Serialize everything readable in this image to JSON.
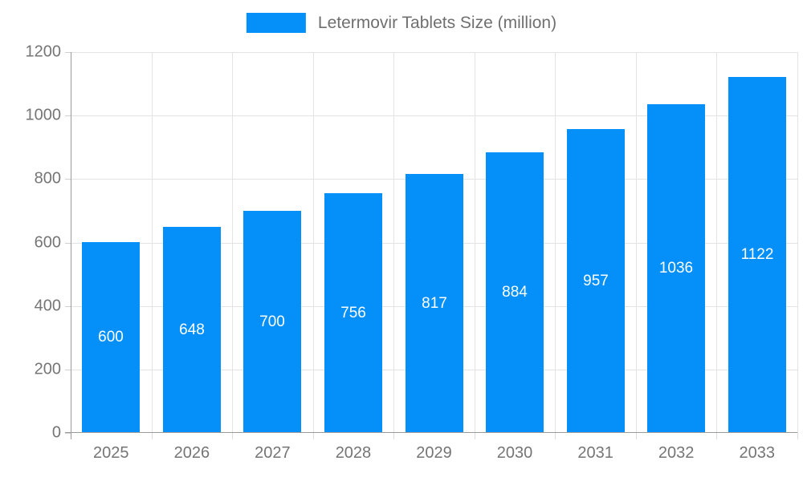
{
  "chart_data": {
    "type": "bar",
    "title": "Letermovir Tablets Size (million)",
    "categories": [
      "2025",
      "2026",
      "2027",
      "2028",
      "2029",
      "2030",
      "2031",
      "2032",
      "2033"
    ],
    "values": [
      600,
      648,
      700,
      756,
      817,
      884,
      957,
      1036,
      1122
    ],
    "xlabel": "",
    "ylabel": "",
    "ylim": [
      0,
      1200
    ],
    "yticks": [
      0,
      200,
      400,
      600,
      800,
      1000,
      1200
    ],
    "grid": true,
    "legend_position": "top",
    "value_labels": "inside-center-white",
    "colors": {
      "bar": "#0490f8",
      "grid": "#e3e3e3",
      "axis": "#9a9a9a",
      "tick_label": "#757575",
      "legend_text": "#6f6f6f",
      "value_label": "#ffffff",
      "background": "#ffffff"
    }
  }
}
